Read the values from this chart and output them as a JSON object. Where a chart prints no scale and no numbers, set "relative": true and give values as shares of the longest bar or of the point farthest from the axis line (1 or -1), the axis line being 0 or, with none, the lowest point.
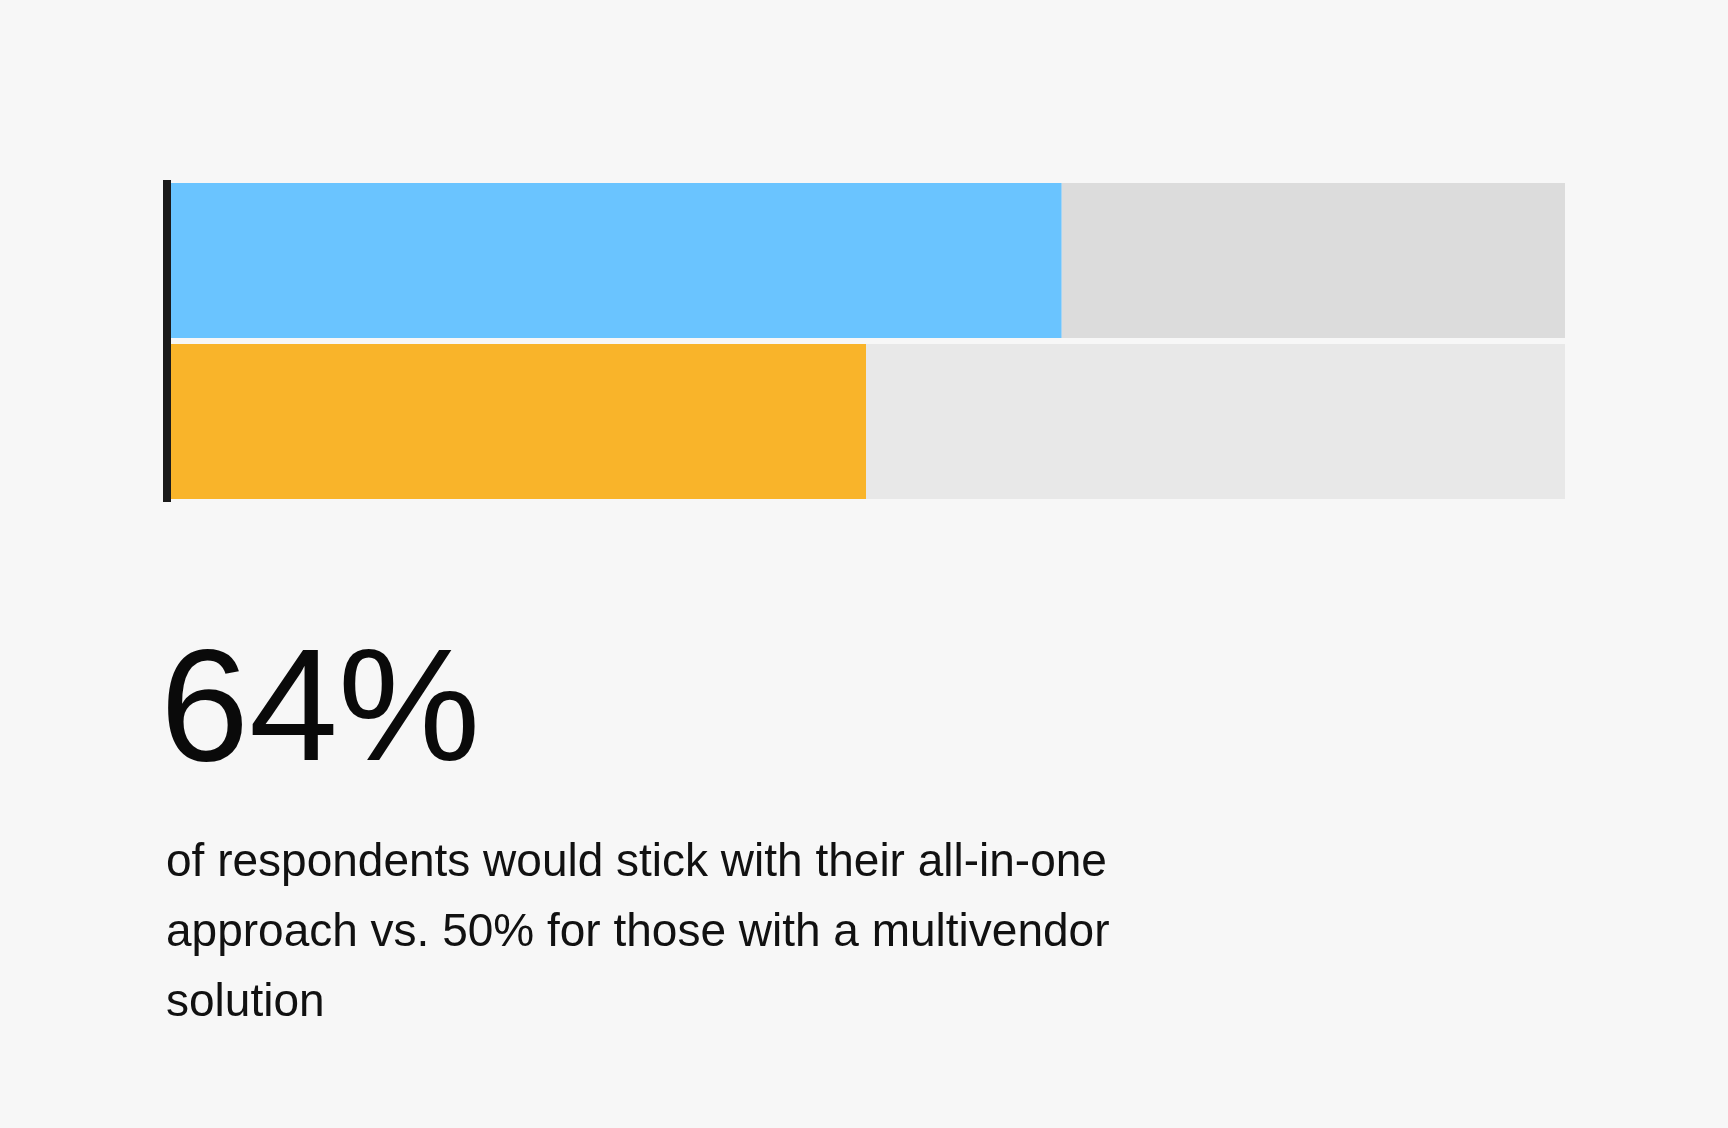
{
  "chart_data": {
    "type": "bar",
    "orientation": "horizontal",
    "stacked": true,
    "relative": true,
    "categories": [
      null,
      null
    ],
    "series": [
      {
        "colors": [
          "#6ac4ff",
          "#f9b42a"
        ],
        "values": [
          0.64,
          0.5
        ]
      },
      {
        "colors": [
          "#dcdcdc",
          "#e8e8e8"
        ],
        "values": [
          0.36,
          0.5
        ]
      }
    ],
    "annotations": [
      "64%",
      "of respondents would stick with their all-in-one approach vs. 50% for those with a multivendor solution"
    ]
  }
}
